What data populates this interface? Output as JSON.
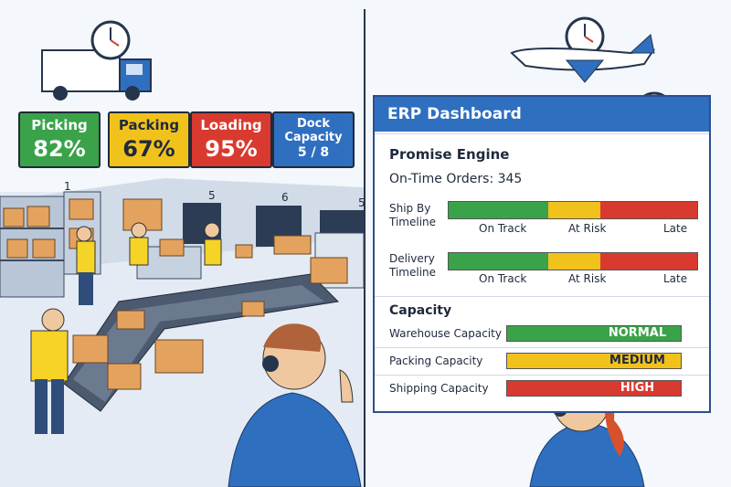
{
  "metrics": {
    "picking": {
      "label": "Picking",
      "value": "82%"
    },
    "packing": {
      "label": "Packing",
      "value": "67%"
    },
    "loading": {
      "label": "Loading",
      "value": "95%"
    },
    "dock": {
      "label": "Dock Capacity",
      "value": "5 / 8"
    }
  },
  "docks": {
    "d1": "1",
    "d5": "5",
    "d6": "6",
    "d5b": "5"
  },
  "erp": {
    "title": "ERP Dashboard",
    "promise_engine": "Promise Engine",
    "on_time_orders": "On-Time Orders: 345",
    "ship_by": {
      "label": "Ship By Timeline",
      "segments": [
        "On Track",
        "At Risk",
        "Late"
      ]
    },
    "delivery": {
      "label": "Delivery Timeline",
      "segments": [
        "On Track",
        "At Risk",
        "Late"
      ]
    },
    "capacity_title": "Capacity",
    "capacity": [
      {
        "label": "Warehouse Capacity",
        "status": "NORMAL"
      },
      {
        "label": "Packing Capacity",
        "status": "MEDIUM"
      },
      {
        "label": "Shipping Capacity",
        "status": "HIGH"
      }
    ]
  },
  "colors": {
    "green": "#3aa34a",
    "yellow": "#f2c21c",
    "red": "#d93a2f",
    "blue": "#2f6fc0"
  }
}
